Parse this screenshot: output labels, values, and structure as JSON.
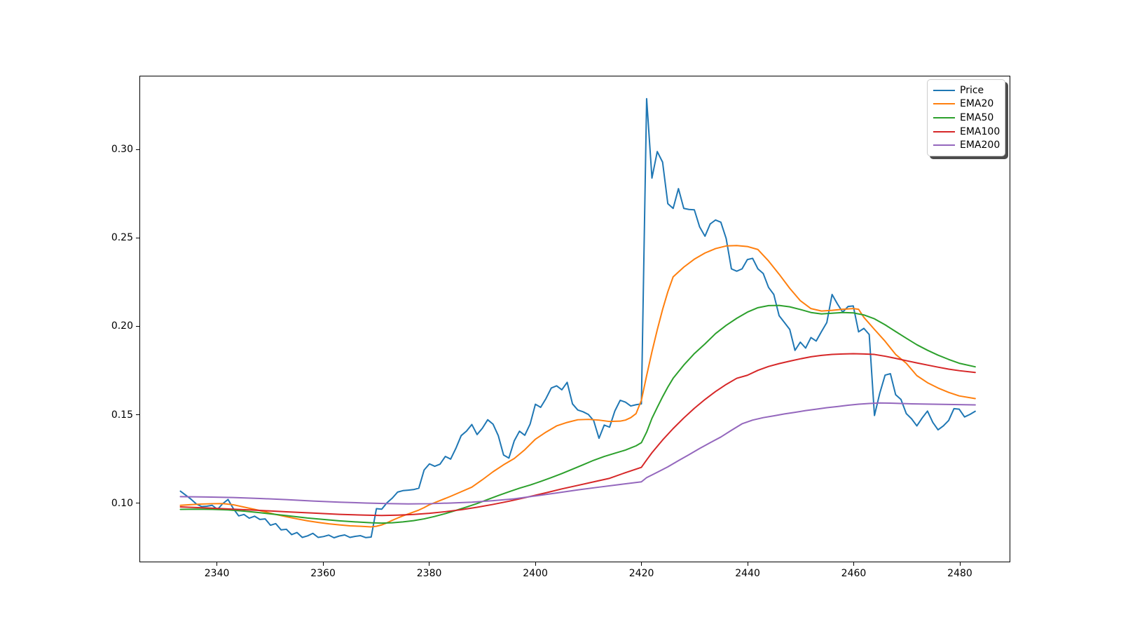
{
  "chart_data": {
    "type": "line",
    "title": "",
    "xlabel": "",
    "ylabel": "",
    "xlim": [
      2325.4,
      2489.5
    ],
    "ylim": [
      0.0666,
      0.3416
    ],
    "grid": false,
    "x_ticks": [
      2340,
      2360,
      2380,
      2400,
      2420,
      2440,
      2460,
      2480
    ],
    "x_tick_labels": [
      "2340",
      "2360",
      "2380",
      "2400",
      "2420",
      "2440",
      "2460",
      "2480"
    ],
    "y_ticks": [
      0.1,
      0.15,
      0.2,
      0.25,
      0.3
    ],
    "y_tick_labels": [
      "0.10",
      "0.15",
      "0.20",
      "0.25",
      "0.30"
    ],
    "legend": {
      "position": "upper right"
    },
    "series": [
      {
        "id": "price",
        "name": "Price",
        "color": "#1f77b4",
        "x_start": 2333,
        "x_step": 1,
        "y": [
          0.1065,
          0.1043,
          0.102,
          0.0993,
          0.0978,
          0.098,
          0.0985,
          0.0962,
          0.0995,
          0.1018,
          0.0966,
          0.0925,
          0.0933,
          0.0912,
          0.0923,
          0.0905,
          0.0908,
          0.0872,
          0.0881,
          0.0846,
          0.0849,
          0.0819,
          0.0831,
          0.0803,
          0.0812,
          0.0826,
          0.0803,
          0.0808,
          0.0816,
          0.0801,
          0.0811,
          0.0817,
          0.0803,
          0.0809,
          0.0813,
          0.0802,
          0.0805,
          0.0966,
          0.0963,
          0.1,
          0.1026,
          0.106,
          0.1068,
          0.1071,
          0.1074,
          0.1082,
          0.1185,
          0.122,
          0.1206,
          0.1218,
          0.1262,
          0.1247,
          0.1308,
          0.138,
          0.1406,
          0.1443,
          0.1386,
          0.1422,
          0.147,
          0.1445,
          0.138,
          0.127,
          0.1253,
          0.135,
          0.1405,
          0.1382,
          0.1445,
          0.1558,
          0.154,
          0.159,
          0.165,
          0.1662,
          0.164,
          0.1682,
          0.156,
          0.1525,
          0.1515,
          0.15,
          0.1465,
          0.1365,
          0.144,
          0.1428,
          0.152,
          0.158,
          0.157,
          0.1548,
          0.1555,
          0.156,
          0.329,
          0.284,
          0.299,
          0.293,
          0.2695,
          0.2668,
          0.278,
          0.2668,
          0.2662,
          0.266,
          0.2563,
          0.251,
          0.258,
          0.2602,
          0.259,
          0.2497,
          0.2325,
          0.2312,
          0.2325,
          0.2378,
          0.2385,
          0.2325,
          0.2299,
          0.222,
          0.218,
          0.206,
          0.2021,
          0.1982,
          0.1863,
          0.191,
          0.1876,
          0.1936,
          0.1916,
          0.197,
          0.2021,
          0.218,
          0.2127,
          0.208,
          0.2112,
          0.2115,
          0.1968,
          0.1988,
          0.1953,
          0.1494,
          0.162,
          0.1723,
          0.1731,
          0.1612,
          0.1585,
          0.1505,
          0.1475,
          0.1435,
          0.148,
          0.1519,
          0.1455,
          0.1413,
          0.1435,
          0.1466,
          0.1533,
          0.153,
          0.1486,
          0.15,
          0.1518
        ]
      },
      {
        "id": "ema20",
        "name": "EMA20",
        "color": "#ff7f0e",
        "x": [
          2333,
          2335,
          2337,
          2339,
          2341,
          2343,
          2345,
          2347,
          2349,
          2351,
          2353,
          2355,
          2357,
          2359,
          2361,
          2363,
          2365,
          2367,
          2369,
          2370,
          2371,
          2372,
          2373,
          2374,
          2375,
          2376,
          2377,
          2378,
          2379,
          2380,
          2382,
          2384,
          2386,
          2388,
          2390,
          2392,
          2394,
          2396,
          2398,
          2400,
          2402,
          2404,
          2406,
          2408,
          2410,
          2412,
          2414,
          2416,
          2417,
          2418,
          2419,
          2420,
          2421,
          2422,
          2423,
          2424,
          2425,
          2426,
          2428,
          2430,
          2432,
          2434,
          2436,
          2438,
          2440,
          2442,
          2444,
          2446,
          2448,
          2450,
          2452,
          2454,
          2456,
          2458,
          2460,
          2461,
          2462,
          2464,
          2466,
          2468,
          2470,
          2472,
          2474,
          2476,
          2478,
          2480,
          2483
        ],
        "y": [
          0.0985,
          0.0989,
          0.0992,
          0.0994,
          0.0995,
          0.0988,
          0.0975,
          0.0962,
          0.0948,
          0.0933,
          0.092,
          0.0908,
          0.0897,
          0.0888,
          0.088,
          0.0874,
          0.0869,
          0.0866,
          0.0863,
          0.0866,
          0.0874,
          0.0886,
          0.09,
          0.0913,
          0.0925,
          0.0936,
          0.0947,
          0.0958,
          0.0972,
          0.0988,
          0.1012,
          0.1036,
          0.1062,
          0.1088,
          0.113,
          0.1175,
          0.1215,
          0.125,
          0.13,
          0.136,
          0.14,
          0.1435,
          0.1455,
          0.147,
          0.1472,
          0.1468,
          0.146,
          0.1462,
          0.1468,
          0.1482,
          0.1505,
          0.158,
          0.172,
          0.1855,
          0.198,
          0.2095,
          0.2195,
          0.228,
          0.2335,
          0.238,
          0.2415,
          0.244,
          0.2455,
          0.2457,
          0.2452,
          0.2435,
          0.237,
          0.2295,
          0.2215,
          0.2145,
          0.21,
          0.2086,
          0.209,
          0.2096,
          0.21,
          0.2096,
          0.205,
          0.1982,
          0.1915,
          0.184,
          0.179,
          0.172,
          0.168,
          0.165,
          0.1625,
          0.1605,
          0.159
        ]
      },
      {
        "id": "ema50",
        "name": "EMA50",
        "color": "#2ca02c",
        "x": [
          2333,
          2336,
          2339,
          2342,
          2345,
          2348,
          2351,
          2354,
          2357,
          2360,
          2363,
          2366,
          2369,
          2371,
          2373,
          2375,
          2377,
          2379,
          2381,
          2383,
          2385,
          2387,
          2389,
          2391,
          2393,
          2395,
          2397,
          2399,
          2401,
          2403,
          2405,
          2407,
          2409,
          2411,
          2413,
          2415,
          2417,
          2419,
          2420,
          2421,
          2422,
          2423,
          2424,
          2425,
          2426,
          2428,
          2430,
          2432,
          2434,
          2436,
          2438,
          2440,
          2442,
          2444,
          2446,
          2448,
          2450,
          2452,
          2454,
          2456,
          2458,
          2460,
          2462,
          2464,
          2466,
          2468,
          2470,
          2472,
          2474,
          2476,
          2478,
          2480,
          2483
        ],
        "y": [
          0.0962,
          0.0963,
          0.0962,
          0.0959,
          0.0952,
          0.0943,
          0.0933,
          0.0923,
          0.0913,
          0.0905,
          0.0897,
          0.0891,
          0.0886,
          0.0884,
          0.0886,
          0.0891,
          0.0898,
          0.0908,
          0.0922,
          0.0938,
          0.0956,
          0.0975,
          0.0995,
          0.1018,
          0.104,
          0.1062,
          0.1082,
          0.11,
          0.112,
          0.1142,
          0.1165,
          0.119,
          0.1215,
          0.124,
          0.1262,
          0.128,
          0.1298,
          0.1322,
          0.134,
          0.14,
          0.1478,
          0.154,
          0.16,
          0.1655,
          0.1705,
          0.178,
          0.1845,
          0.19,
          0.1958,
          0.2005,
          0.2045,
          0.208,
          0.2105,
          0.2117,
          0.2118,
          0.211,
          0.2095,
          0.2078,
          0.207,
          0.2074,
          0.2078,
          0.2076,
          0.2064,
          0.2042,
          0.2008,
          0.197,
          0.1932,
          0.1895,
          0.1864,
          0.1836,
          0.1812,
          0.179,
          0.177
        ]
      },
      {
        "id": "ema100",
        "name": "EMA100",
        "color": "#d62728",
        "x": [
          2333,
          2338,
          2343,
          2348,
          2353,
          2358,
          2363,
          2368,
          2371,
          2374,
          2377,
          2380,
          2383,
          2386,
          2389,
          2392,
          2395,
          2398,
          2400,
          2402,
          2405,
          2408,
          2411,
          2414,
          2417,
          2420,
          2421,
          2422,
          2424,
          2426,
          2428,
          2430,
          2432,
          2434,
          2436,
          2438,
          2440,
          2442,
          2444,
          2446,
          2448,
          2450,
          2452,
          2454,
          2456,
          2458,
          2460,
          2462,
          2464,
          2466,
          2468,
          2470,
          2472,
          2474,
          2476,
          2478,
          2480,
          2483
        ],
        "y": [
          0.0976,
          0.097,
          0.0963,
          0.0956,
          0.0948,
          0.0941,
          0.0934,
          0.0929,
          0.0927,
          0.0929,
          0.0933,
          0.094,
          0.0949,
          0.096,
          0.0974,
          0.099,
          0.1008,
          0.1028,
          0.1042,
          0.1056,
          0.1078,
          0.1098,
          0.1118,
          0.1138,
          0.117,
          0.12,
          0.1242,
          0.1283,
          0.1355,
          0.142,
          0.148,
          0.1535,
          0.1585,
          0.163,
          0.167,
          0.1705,
          0.1722,
          0.175,
          0.1772,
          0.1788,
          0.1802,
          0.1815,
          0.1827,
          0.1835,
          0.184,
          0.1843,
          0.1844,
          0.1843,
          0.184,
          0.183,
          0.1818,
          0.1805,
          0.1792,
          0.178,
          0.1768,
          0.1757,
          0.1748,
          0.1738
        ]
      },
      {
        "id": "ema200",
        "name": "EMA200",
        "color": "#9467bd",
        "x": [
          2333,
          2338,
          2343,
          2348,
          2353,
          2358,
          2363,
          2368,
          2372,
          2376,
          2380,
          2384,
          2388,
          2392,
          2396,
          2400,
          2404,
          2408,
          2412,
          2416,
          2420,
          2421,
          2423,
          2425,
          2427,
          2429,
          2431,
          2433,
          2435,
          2437,
          2439,
          2441,
          2443,
          2445,
          2447,
          2449,
          2451,
          2453,
          2455,
          2457,
          2459,
          2461,
          2463,
          2465,
          2467,
          2469,
          2471,
          2473,
          2475,
          2477,
          2479,
          2481,
          2483
        ],
        "y": [
          0.1034,
          0.1032,
          0.1029,
          0.1024,
          0.1017,
          0.1009,
          0.1003,
          0.0998,
          0.0995,
          0.0993,
          0.0994,
          0.0998,
          0.1003,
          0.1011,
          0.1022,
          0.1038,
          0.1055,
          0.1072,
          0.1088,
          0.1103,
          0.1118,
          0.1142,
          0.1172,
          0.1203,
          0.1238,
          0.1272,
          0.1307,
          0.134,
          0.1372,
          0.141,
          0.1447,
          0.1468,
          0.1482,
          0.1492,
          0.1503,
          0.1512,
          0.1522,
          0.153,
          0.1538,
          0.1545,
          0.1552,
          0.1558,
          0.1562,
          0.1565,
          0.1564,
          0.1562,
          0.156,
          0.1559,
          0.1558,
          0.1557,
          0.1556,
          0.1555,
          0.1554
        ]
      }
    ]
  }
}
